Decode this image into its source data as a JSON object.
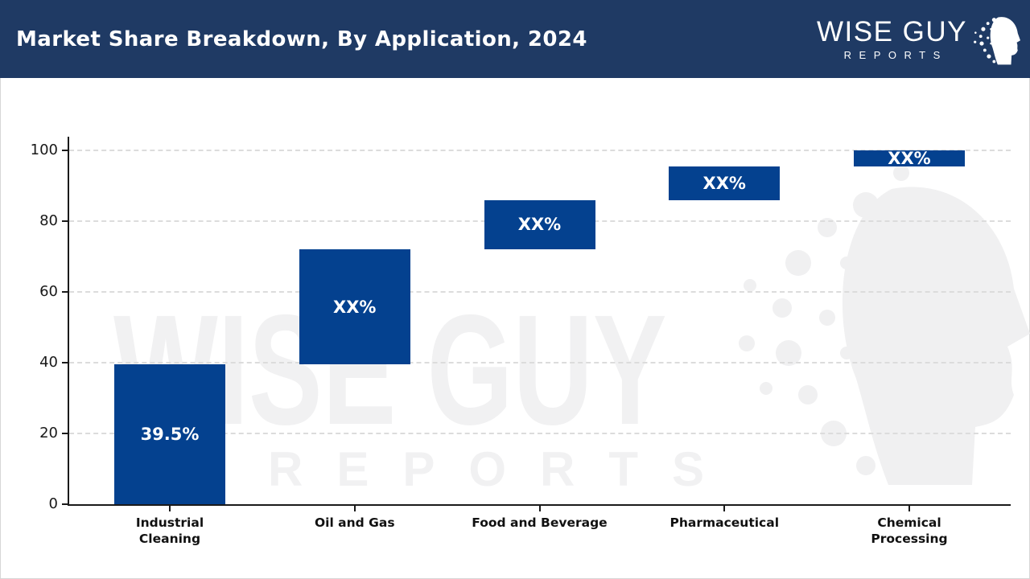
{
  "header": {
    "title": "Market Share Breakdown, By Application, 2024",
    "logo": {
      "wordmark": "WISE GUY",
      "subtitle": "REPORTS"
    }
  },
  "watermark": {
    "wordmark": "WISE GUY",
    "subtitle": "REPORTS"
  },
  "colors": {
    "header_bg": "#1f3a64",
    "bar": "#04418f",
    "grid": "#dcdcdc",
    "axis": "#1a1a1a",
    "watermark": "#f1f1f2"
  },
  "chart_data": {
    "type": "bar",
    "subtype": "waterfall-cumulative",
    "title": "Market Share Breakdown, By Application, 2024",
    "categories": [
      "Industrial\nCleaning",
      "Oil and Gas",
      "Food and Beverage",
      "Pharmaceutical",
      "Chemical\nProcessing"
    ],
    "bars": [
      {
        "category": "Industrial Cleaning",
        "start": 0,
        "end": 39.5,
        "label": "39.5%"
      },
      {
        "category": "Oil and Gas",
        "start": 39.5,
        "end": 72,
        "label": "XX%"
      },
      {
        "category": "Food and Beverage",
        "start": 72,
        "end": 86,
        "label": "XX%"
      },
      {
        "category": "Pharmaceutical",
        "start": 86,
        "end": 95.5,
        "label": "XX%"
      },
      {
        "category": "Chemical Processing",
        "start": 95.5,
        "end": 100,
        "label": "XX%"
      }
    ],
    "yticks": [
      0,
      20,
      40,
      60,
      80,
      100
    ],
    "ylim": [
      0,
      104
    ],
    "xlabel": "",
    "ylabel": "",
    "bar_color": "#04418f",
    "grid": "horizontal-dashed",
    "legend": false
  }
}
